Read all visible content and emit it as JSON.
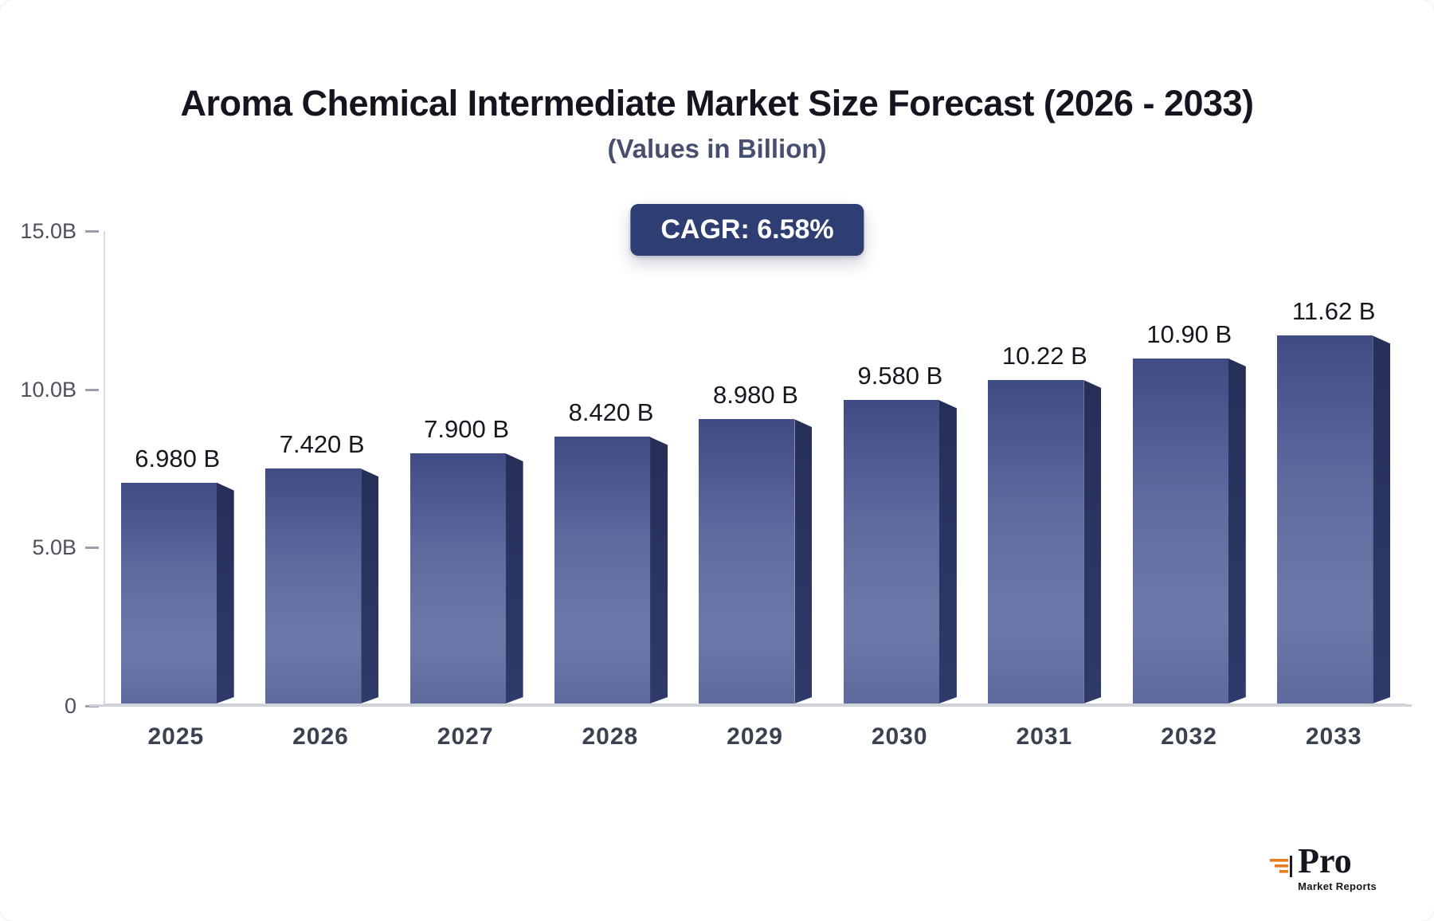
{
  "title": "Aroma Chemical Intermediate Market Size Forecast (2026 - 2033)",
  "subtitle": "(Values in Billion)",
  "badge": {
    "label": "CAGR: 6.58%"
  },
  "chart_data": {
    "type": "bar",
    "title": "Aroma Chemical Intermediate Market Size Forecast (2026 - 2033)",
    "subtitle": "(Values in Billion)",
    "categories": [
      "2025",
      "2026",
      "2027",
      "2028",
      "2029",
      "2030",
      "2031",
      "2032",
      "2033"
    ],
    "values": [
      6.98,
      7.42,
      7.9,
      8.42,
      8.98,
      9.58,
      10.22,
      10.9,
      11.62
    ],
    "value_labels": [
      "6.980 B",
      "7.420 B",
      "7.900 B",
      "8.420 B",
      "8.980 B",
      "9.580 B",
      "10.22 B",
      "10.90 B",
      "11.62 B"
    ],
    "xlabel": "",
    "ylabel": "",
    "ylim": [
      0,
      15
    ],
    "y_ticks": [
      {
        "value": 15,
        "label": "15.0B"
      },
      {
        "value": 10,
        "label": "10.0B"
      },
      {
        "value": 5,
        "label": "5.0B"
      },
      {
        "value": 0,
        "label": "0"
      }
    ],
    "grid": "off",
    "legend": "none",
    "colors": {
      "bar_front_top": "#3f4b83",
      "bar_front_mid": "#6d78aa",
      "bar_front_bottom": "#5e699e",
      "bar_side": "#2a3462",
      "badge_bg": "#2e3d72",
      "axis_line": "#cfd2d8"
    }
  },
  "logo": {
    "name": "Pro",
    "subtext": "Market Reports",
    "accent": "#e87c1f"
  }
}
